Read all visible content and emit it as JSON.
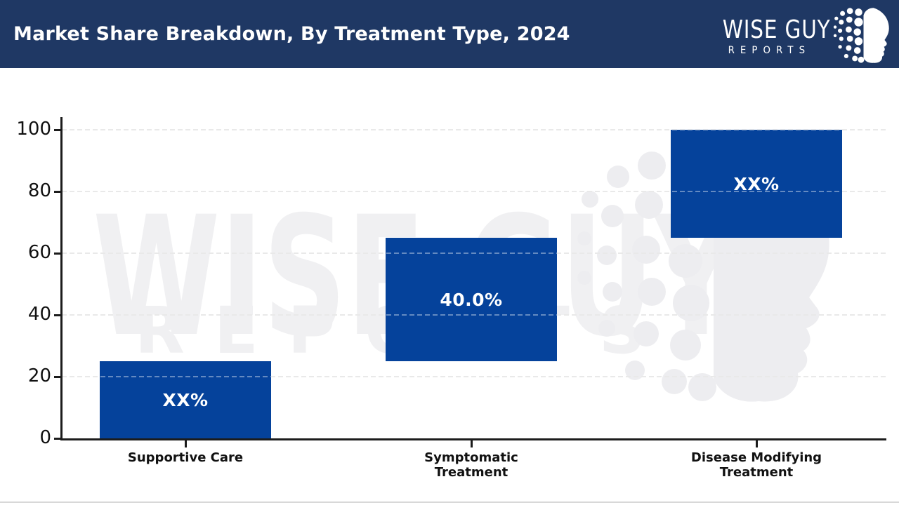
{
  "header": {
    "title": "Market Share Breakdown, By Treatment Type, 2024",
    "bg_color": "#1f3864",
    "brand": {
      "line1": "WISE GUY",
      "line2": "REPORTS"
    }
  },
  "watermark": {
    "line1": "WISE GUY",
    "line2": "REPORTS"
  },
  "chart_data": {
    "type": "bar",
    "subtype": "floating-waterfall",
    "title": "Market Share Breakdown, By Treatment Type, 2024",
    "categories": [
      "Supportive Care",
      "Symptomatic\nTreatment",
      "Disease Modifying\nTreatment"
    ],
    "segments": [
      {
        "category": "Supportive Care",
        "start": 0,
        "end": 25,
        "label": "XX%"
      },
      {
        "category": "Symptomatic Treatment",
        "start": 25,
        "end": 65,
        "label": "40.0%"
      },
      {
        "category": "Disease Modifying Treatment",
        "start": 65,
        "end": 100,
        "label": "XX%"
      }
    ],
    "ylim": [
      0,
      100
    ],
    "yticks": [
      0,
      20,
      40,
      60,
      80,
      100
    ],
    "xlabel": "",
    "ylabel": "",
    "grid": "horizontal-dashed",
    "legend": "none",
    "bar_color": "#05429b",
    "bar_label_color": "#ffffff",
    "axis_color": "#1c1c1c",
    "grid_color": "#dcdcdc"
  }
}
